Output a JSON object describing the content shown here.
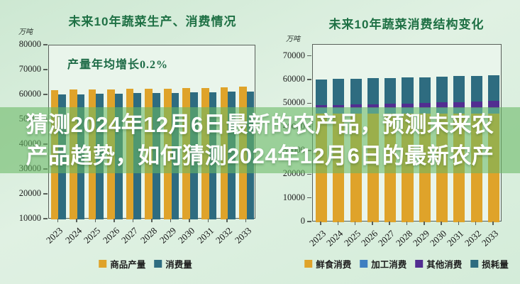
{
  "overlay": {
    "lines": [
      "猜测2024年12月6日最新的农产品，预测未来农",
      "产品趋势，如何猜测2024年12月6日的最新农产"
    ],
    "text_color": "#ffffff",
    "band_color": "#69b964"
  },
  "colors": {
    "title_green": "#1e7044",
    "yellow": "#dfa32a",
    "teal": "#2e6c80",
    "blue": "#3f7fc1",
    "purple": "#522d91",
    "background": "#d9eedd"
  },
  "chart_data": [
    {
      "type": "bar",
      "mode": "grouped",
      "title": "未来10年蔬菜生产、消费情况",
      "unit": "万吨",
      "annotation": "产量年均增长0.2%",
      "categories": [
        "2023",
        "2024",
        "2025",
        "2026",
        "2027",
        "2028",
        "2029",
        "2030",
        "2031",
        "2032",
        "2033"
      ],
      "series": [
        {
          "name": "商品产量",
          "color": "#dfa32a",
          "values": [
            62000,
            62150,
            62300,
            62400,
            62500,
            62600,
            62700,
            62800,
            62900,
            63100,
            63300
          ]
        },
        {
          "name": "消费量",
          "color": "#2e6c80",
          "values": [
            60300,
            60400,
            60550,
            60650,
            60750,
            60850,
            60950,
            61050,
            61150,
            61300,
            61500
          ]
        }
      ],
      "ylim": [
        10000,
        80000
      ],
      "yticks": [
        10000,
        20000,
        30000,
        40000,
        50000,
        60000,
        70000,
        80000
      ],
      "grid": false,
      "legend_position": "bottom"
    },
    {
      "type": "bar",
      "mode": "stacked",
      "title": "未来10年蔬菜消费结构变化",
      "unit": "万吨",
      "annotation": "",
      "categories": [
        "2023",
        "2024",
        "2025",
        "2026",
        "2027",
        "2028",
        "2029",
        "2030",
        "2031",
        "2032",
        "2033"
      ],
      "series": [
        {
          "name": "鲜食消费",
          "color": "#dfa32a",
          "values": [
            46000,
            46000,
            46000,
            46000,
            46000,
            46000,
            46000,
            46000,
            46000,
            46000,
            46000
          ]
        },
        {
          "name": "加工消费",
          "color": "#3f7fc1",
          "values": [
            2400,
            2400,
            2400,
            2400,
            2400,
            2400,
            2400,
            2400,
            2400,
            2400,
            2400
          ]
        },
        {
          "name": "其他消费",
          "color": "#522d91",
          "values": [
            1100,
            1200,
            1350,
            1500,
            1650,
            1800,
            2000,
            2200,
            2400,
            2600,
            2800
          ]
        },
        {
          "name": "损耗量",
          "color": "#2e6c80",
          "values": [
            10900,
            10900,
            10900,
            10900,
            10900,
            10900,
            10900,
            10900,
            10900,
            10900,
            10900
          ]
        }
      ],
      "ylim": [
        0,
        75000
      ],
      "yticks": [
        0,
        10000,
        20000,
        30000,
        40000,
        50000,
        60000,
        70000
      ],
      "grid": false,
      "legend_position": "bottom"
    }
  ]
}
